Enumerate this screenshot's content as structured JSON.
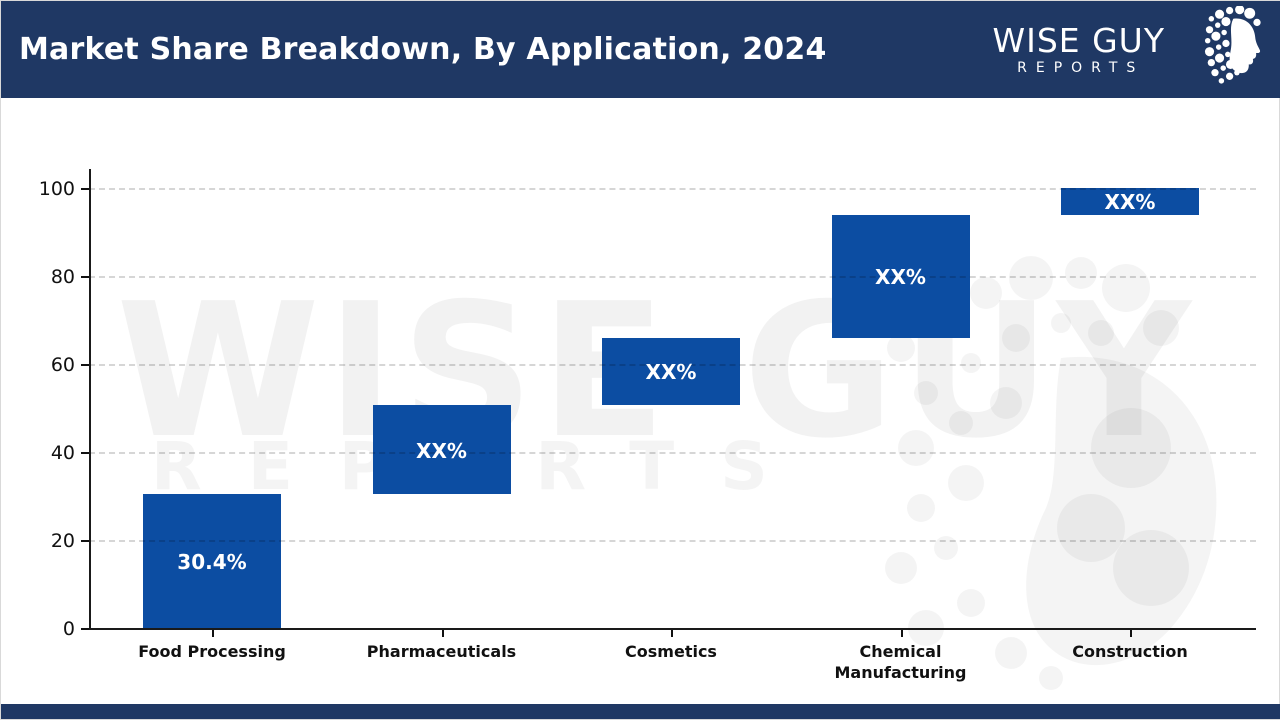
{
  "header": {
    "title": "Market Share Breakdown, By Application, 2024"
  },
  "logo": {
    "line1": "WISE GUY",
    "line2": "REPORTS"
  },
  "watermark": {
    "line1": "WISE GUY",
    "line2": "REPORTS"
  },
  "colors": {
    "header_bg": "#1f3864",
    "footer_bg": "#1f3864",
    "bar": "#0c4da2",
    "bar_label": "#ffffff"
  },
  "chart_data": {
    "type": "bar",
    "subtype": "waterfall-range-bars",
    "title": "Market Share Breakdown, By Application, 2024",
    "xlabel": "",
    "ylabel": "",
    "ylim": [
      0,
      105
    ],
    "yticks": [
      0,
      20,
      40,
      60,
      80,
      100
    ],
    "grid": "horizontal-dashed",
    "legend": "none",
    "categories": [
      "Food Processing",
      "Pharmaceuticals",
      "Cosmetics",
      "Chemical Manufacturing",
      "Construction"
    ],
    "segments": [
      {
        "category": "Food Processing",
        "start": 0,
        "end": 30.4,
        "label": "30.4%"
      },
      {
        "category": "Pharmaceuticals",
        "start": 30.4,
        "end": 50.7,
        "label": "XX%"
      },
      {
        "category": "Cosmetics",
        "start": 50.7,
        "end": 65.9,
        "label": "XX%"
      },
      {
        "category": "Chemical Manufacturing",
        "start": 65.9,
        "end": 93.9,
        "label": "XX%"
      },
      {
        "category": "Construction",
        "start": 93.9,
        "end": 100,
        "label": "XX%"
      }
    ]
  }
}
